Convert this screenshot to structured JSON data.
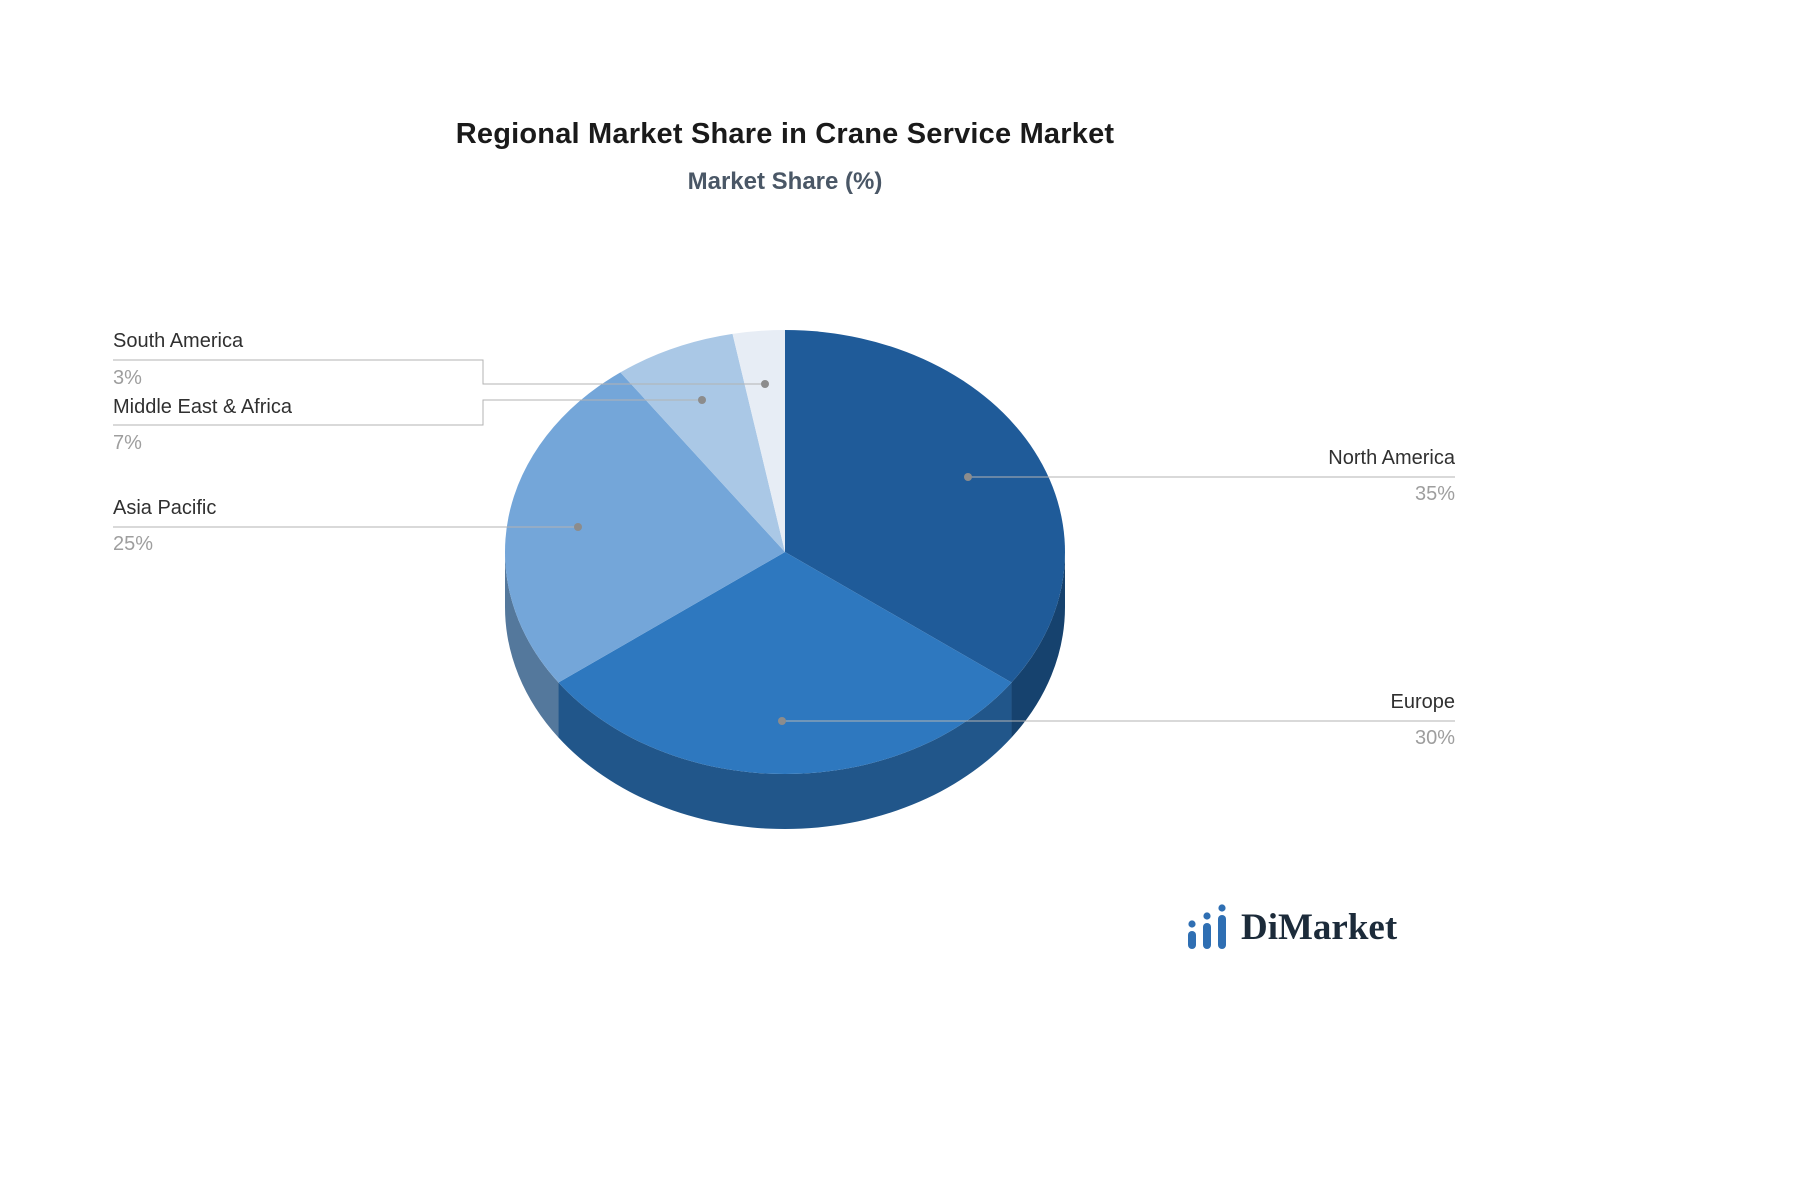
{
  "title": "Regional Market Share in Crane Service Market",
  "subtitle": "Market Share (%)",
  "brand": {
    "name": "DiMarket",
    "accent_color": "#2f6fb3",
    "text_color": "#1c2b3a"
  },
  "chart_data": {
    "type": "pie",
    "style": "3d",
    "title": "Regional Market Share in Crane Service Market",
    "subtitle": "Market Share (%)",
    "unit": "%",
    "start_angle_deg": 0,
    "direction": "clockwise",
    "legend_position": "none",
    "categories": [
      "North America",
      "Europe",
      "Asia Pacific",
      "Middle East & Africa",
      "South America"
    ],
    "values": [
      35,
      30,
      25,
      7,
      3
    ],
    "value_labels": [
      "35%",
      "30%",
      "25%",
      "7%",
      "3%"
    ],
    "colors": [
      "#1f5b99",
      "#2e78bf",
      "#74a6d9",
      "#aac8e6",
      "#e7edf5"
    ],
    "label_name_color": "#303030",
    "label_value_color": "#9e9e9e",
    "leader_line_color": "#b3b3b3",
    "leader_dot_color": "#8c8c8c"
  }
}
